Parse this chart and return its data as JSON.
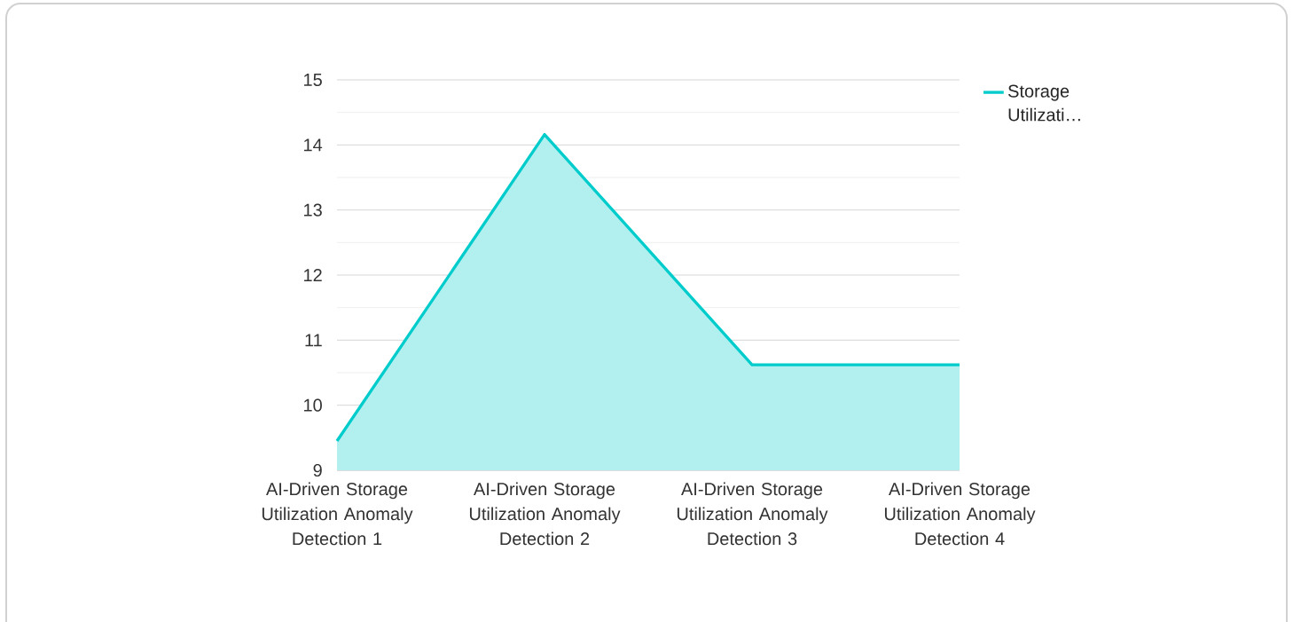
{
  "chart_data": {
    "type": "area",
    "categories": [
      "AI-Driven Storage Utilization Anomaly Detection 1",
      "AI-Driven Storage Utilization Anomaly Detection 2",
      "AI-Driven Storage Utilization Anomaly Detection 3",
      "AI-Driven Storage Utilization Anomaly Detection 4"
    ],
    "series": [
      {
        "name": "Storage Utilizati…",
        "color": "#00cccc",
        "values": [
          9.45,
          14.16,
          10.62,
          10.62
        ]
      }
    ],
    "ylim": [
      9,
      15
    ],
    "yticks": [
      9,
      10,
      11,
      12,
      13,
      14,
      15
    ],
    "grid": "y",
    "legend": "top right",
    "marker": "none"
  }
}
